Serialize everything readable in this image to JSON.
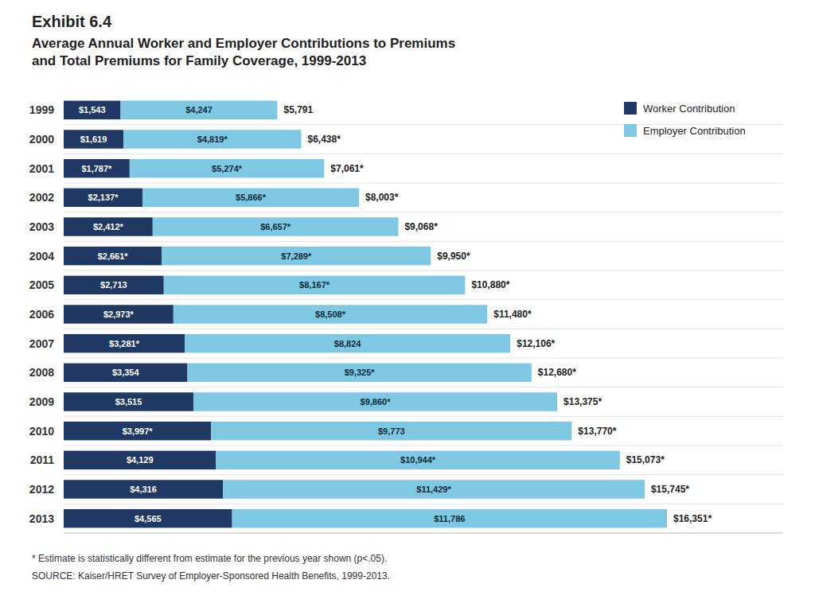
{
  "chart_data": {
    "type": "bar",
    "orientation": "horizontal",
    "stacked": true,
    "title": "Exhibit 6.4",
    "subtitle": [
      "Average Annual Worker and Employer Contributions to Premiums",
      "and Total Premiums for Family Coverage, 1999-2013"
    ],
    "categories": [
      "1999",
      "2000",
      "2001",
      "2002",
      "2003",
      "2004",
      "2005",
      "2006",
      "2007",
      "2008",
      "2009",
      "2010",
      "2011",
      "2012",
      "2013"
    ],
    "series": [
      {
        "name": "Worker Contribution",
        "color": "#1f3864",
        "values": [
          1543,
          1619,
          1787,
          2137,
          2412,
          2661,
          2713,
          2973,
          3281,
          3354,
          3515,
          3997,
          4129,
          4316,
          4565
        ],
        "value_labels": [
          "$1,543",
          "$1,619",
          "$1,787*",
          "$2,137*",
          "$2,412*",
          "$2,661*",
          "$2,713",
          "$2,973*",
          "$3,281*",
          "$3,354",
          "$3,515",
          "$3,997*",
          "$4,129",
          "$4,316",
          "$4,565"
        ]
      },
      {
        "name": "Employer Contribution",
        "color": "#7ec8e3",
        "values": [
          4247,
          4819,
          5274,
          5866,
          6657,
          7289,
          8167,
          8508,
          8824,
          9325,
          9860,
          9773,
          10944,
          11429,
          11786
        ],
        "value_labels": [
          "$4,247",
          "$4,819*",
          "$5,274*",
          "$5,866*",
          "$6,657*",
          "$7,289*",
          "$8,167*",
          "$8,508*",
          "$8,824",
          "$9,325*",
          "$9,860*",
          "$9,773",
          "$10,944*",
          "$11,429*",
          "$11,786"
        ]
      }
    ],
    "totals": [
      5791,
      6438,
      7061,
      8003,
      9068,
      9950,
      10880,
      11480,
      12106,
      12680,
      13375,
      13770,
      15073,
      15745,
      16351
    ],
    "total_labels": [
      "$5,791",
      "$6,438*",
      "$7,061*",
      "$8,003*",
      "$9,068*",
      "$9,950*",
      "$10,880*",
      "$11,480*",
      "$12,106*",
      "$12,680*",
      "$13,375*",
      "$13,770*",
      "$15,073*",
      "$15,745*",
      "$16,351*"
    ],
    "data_labels": true,
    "xlim": [
      0,
      19500
    ],
    "xticks": [],
    "tick_labels": "y",
    "grid": false,
    "legend": "upper right",
    "annotations": [
      "* Estimate is statistically different from estimate for the previous year shown (p<.05).",
      "SOURCE:  Kaiser/HRET Survey of Employer-Sponsored Health Benefits, 1999-2013."
    ]
  }
}
